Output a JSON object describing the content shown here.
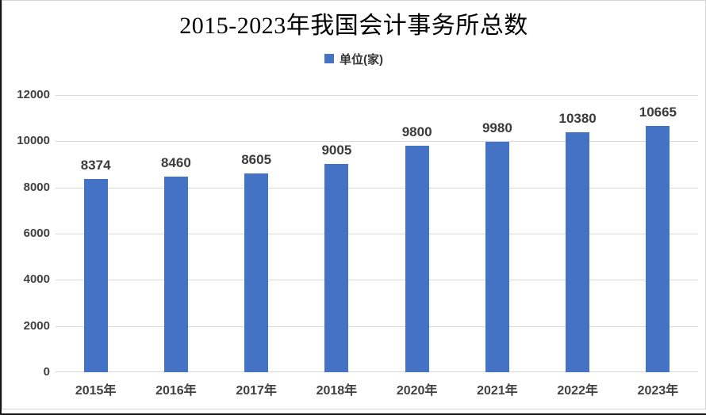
{
  "chart_data": {
    "type": "bar",
    "title": "2015-2023年我国会计事务所总数",
    "legend_label": "单位(家)",
    "legend_position": "top-center",
    "categories": [
      "2015年",
      "2016年",
      "2017年",
      "2018年",
      "2020年",
      "2021年",
      "2022年",
      "2023年"
    ],
    "values": [
      8374,
      8460,
      8605,
      9005,
      9800,
      9980,
      10380,
      10665
    ],
    "ylim": [
      0,
      12000
    ],
    "yticks": [
      0,
      2000,
      4000,
      6000,
      8000,
      10000,
      12000
    ],
    "grid": true,
    "xlabel": "",
    "ylabel": "",
    "bar_color": "#4472C4",
    "gridline_color": "#D9D9D9",
    "tick_label_color": "#404040",
    "data_label_color": "#3B3B3B",
    "title_color": "#000000"
  }
}
